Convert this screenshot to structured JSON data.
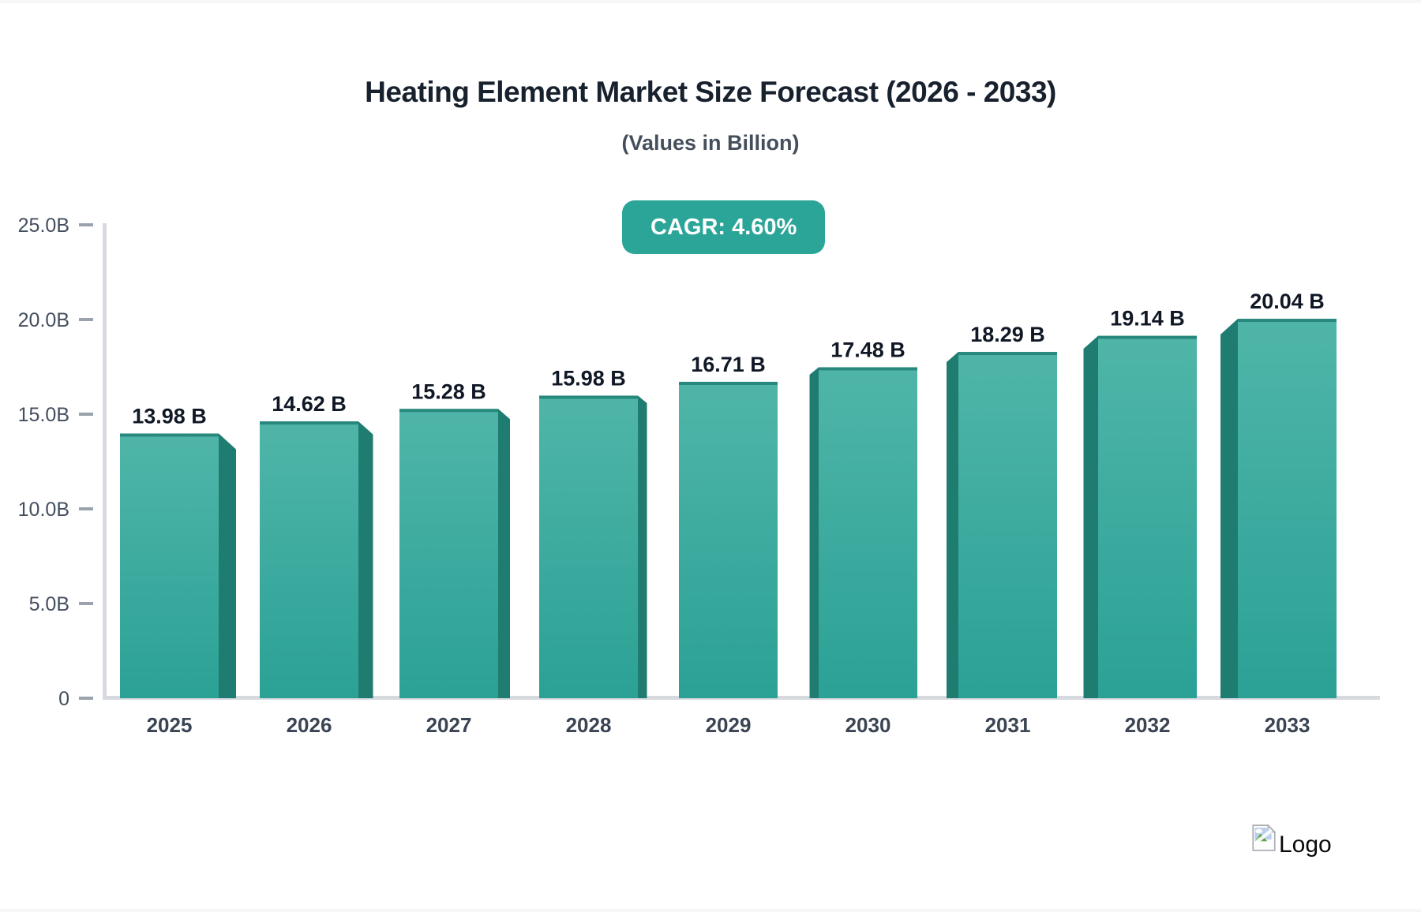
{
  "header": {
    "title": "Heating Element Market Size Forecast (2026 - 2033)",
    "subtitle": "(Values in Billion)"
  },
  "badge": {
    "label": "CAGR: 4.60%",
    "bg": "#2ba597",
    "text_color": "#ffffff"
  },
  "logo": {
    "alt_text": "Logo"
  },
  "chart_data": {
    "type": "bar",
    "title": "Heating Element Market Size Forecast (2026 - 2033)",
    "subtitle": "(Values in Billion)",
    "cagr": "4.60%",
    "categories": [
      "2025",
      "2026",
      "2027",
      "2028",
      "2029",
      "2030",
      "2031",
      "2032",
      "2033"
    ],
    "values": [
      13.98,
      14.62,
      15.28,
      15.98,
      16.71,
      17.48,
      18.29,
      19.14,
      20.04
    ],
    "value_labels": [
      "13.98 B",
      "14.62 B",
      "15.28 B",
      "15.98 B",
      "16.71 B",
      "17.48 B",
      "18.29 B",
      "19.14 B",
      "20.04 B"
    ],
    "unit": "Billion USD",
    "ylim": [
      0,
      25
    ],
    "ytick_interval": 5,
    "ytick_labels": [
      "0",
      "5.0B",
      "10.0B",
      "15.0B",
      "20.0B",
      "25.0B"
    ],
    "grid": false,
    "legend": false,
    "style": {
      "bar_gradient_top": "#50b5a9",
      "bar_gradient_bottom": "#2ba195",
      "bar_top_edge": "#1f7d72",
      "bar_side_face": "#1f7c71",
      "axis_line": "#d6d9de",
      "tick_dash": "#9aa2ad",
      "ytick_label_color": "#434e5e",
      "xtick_label_color": "#3a4453",
      "value_label_color": "#101826"
    }
  }
}
